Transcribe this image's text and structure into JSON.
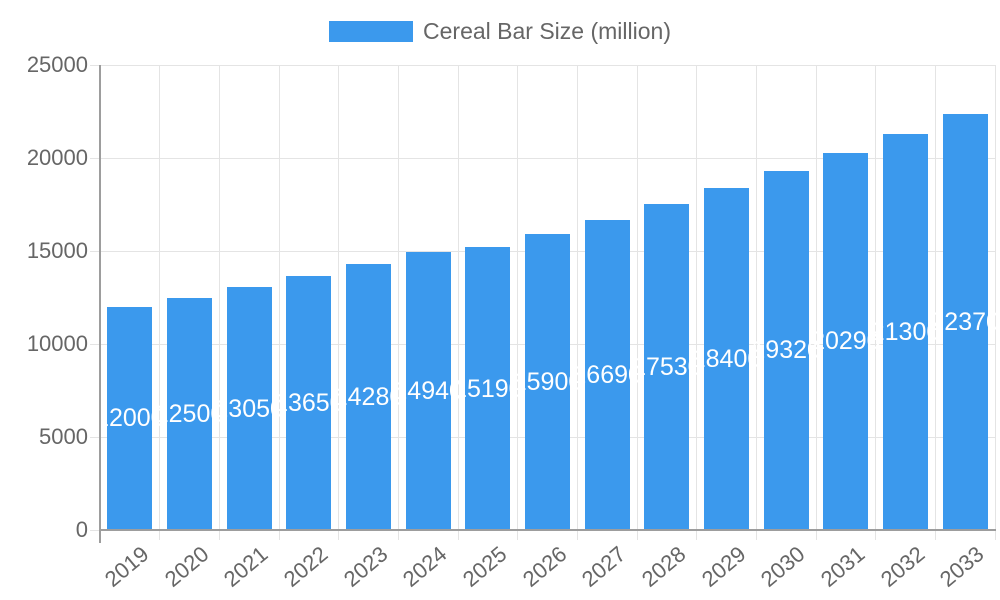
{
  "legend": {
    "label": "Cereal Bar Size (million)",
    "swatch_color": "#3b99ed"
  },
  "chart_data": {
    "type": "bar",
    "title": "",
    "legend_position": "top",
    "categories": [
      "2019",
      "2020",
      "2021",
      "2022",
      "2023",
      "2024",
      "2025",
      "2026",
      "2027",
      "2028",
      "2029",
      "2030",
      "2031",
      "2032",
      "2033"
    ],
    "series": [
      {
        "name": "Cereal Bar Size (million)",
        "values": [
          12000,
          12500,
          13050,
          13650,
          14280,
          14940,
          15190,
          15900,
          16690,
          17530,
          18400,
          19320,
          20290,
          21300,
          22370
        ]
      }
    ],
    "xlabel": "",
    "ylabel": "",
    "ylim": [
      0,
      25000
    ],
    "y_ticks": [
      25000,
      20000,
      15000,
      10000,
      5000,
      0
    ],
    "grid": true,
    "x_tick_rotation_deg": -40,
    "bar_color": "#3b99ed",
    "value_labels_shown": true,
    "value_label_color": "#ffffff",
    "axis_text_color": "#666666",
    "gridline_color": "#e4e4e4",
    "axis_border_color": "#9d9d9d"
  }
}
